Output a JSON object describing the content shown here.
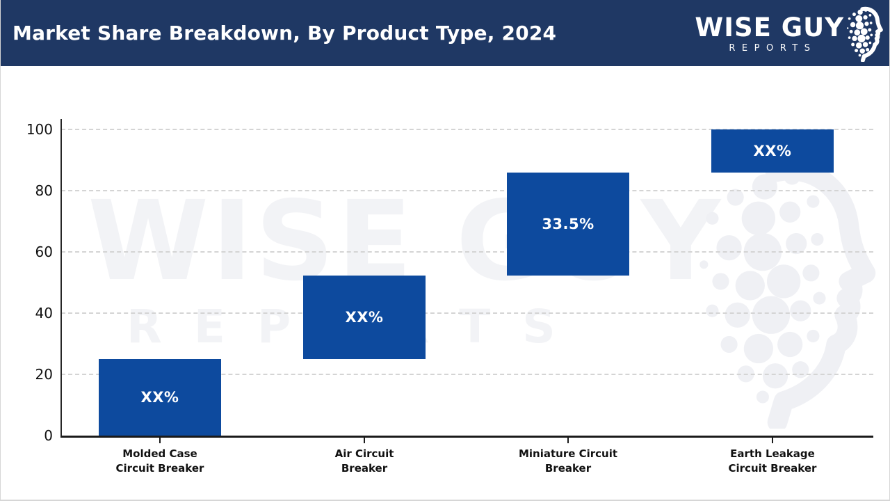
{
  "header": {
    "title": "Market Share Breakdown, By Product Type, 2024",
    "logo": {
      "line1": "WISE GUY",
      "line2": "REPORTS"
    }
  },
  "watermark": {
    "line1": "WISE GUY",
    "line2": "REPORTS"
  },
  "chart_data": {
    "type": "bar",
    "subtype": "waterfall-floating-segments",
    "title": "Market Share Breakdown, By Product Type, 2024",
    "categories": [
      [
        "Molded Case",
        "Circuit Breaker"
      ],
      [
        "Air Circuit",
        "Breaker"
      ],
      [
        "Miniature Circuit",
        "Breaker"
      ],
      [
        "Earth Leakage",
        "Circuit Breaker"
      ]
    ],
    "segments": [
      {
        "start": 0,
        "end": 25,
        "value_label": "XX%"
      },
      {
        "start": 25,
        "end": 52.3,
        "value_label": "XX%"
      },
      {
        "start": 52.3,
        "end": 85.8,
        "value_label": "33.5%"
      },
      {
        "start": 85.8,
        "end": 100,
        "value_label": "XX%"
      }
    ],
    "yticks": [
      0,
      20,
      40,
      60,
      80,
      100
    ],
    "ylim": [
      0,
      103.5
    ],
    "grid": "horizontal-dashed",
    "legend": "none",
    "bar_color": "#0d4a9e"
  },
  "colors": {
    "header_bg": "#1f3864",
    "bar": "#0d4a9e",
    "axis": "#1a1a1a",
    "gridline": "#d4d4d4",
    "watermark": "#f2f3f6",
    "title_text": "#ffffff",
    "page_bg": "#ffffff"
  }
}
